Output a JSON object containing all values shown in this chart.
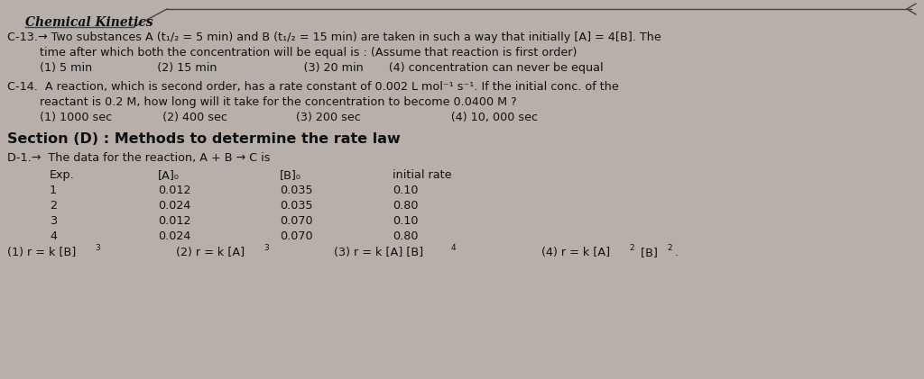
{
  "bg_color": "#b8b0a8",
  "title_text": "Chemical Kinetics",
  "q13_line1": "C-13.→ Two substances A (t₁/₂ = 5 min) and B (t₁/₂ = 15 min) are taken in such a way that initially [A] = 4[B]. The",
  "q13_line2": "         time after which both the concentration will be equal is : (Assume that reaction is first order)",
  "q13_line3": "         (1) 5 min                  (2) 15 min                        (3) 20 min       (4) concentration can never be equal",
  "q14_line1": "C-14.  A reaction, which is second order, has a rate constant of 0.002 L mol⁻¹ s⁻¹. If the initial conc. of the",
  "q14_line2": "         reactant is 0.2 M, how long will it take for the concentration to become 0.0400 M ?",
  "q14_line3": "         (1) 1000 sec              (2) 400 sec                   (3) 200 sec                         (4) 10, 000 sec",
  "section_title": "Section (D) : Methods to determine the rate law",
  "d1_line": "D-1.→  The data for the reaction, A + B → C is",
  "col_exp": "Exp.",
  "col_A": "[A]₀",
  "col_B": "[B]₀",
  "col_rate": "initial rate",
  "rows": [
    [
      "1",
      "0.012",
      "0.035",
      "0.10"
    ],
    [
      "2",
      "0.024",
      "0.035",
      "0.80"
    ],
    [
      "3",
      "0.012",
      "0.070",
      "0.10"
    ],
    [
      "4",
      "0.024",
      "0.070",
      "0.80"
    ]
  ],
  "opt1": "(1) r = k [B]",
  "opt1_sup": "3",
  "opt2": "(2) r = k [A]",
  "opt2_sup": "3",
  "opt3": "(3) r = k [A] [B]",
  "opt3_sup": "4",
  "opt4": "(4) r = k [A]",
  "opt4_sup": "2",
  "opt4b": " [B]",
  "opt4b_sup": "2",
  "opt4_end": "."
}
